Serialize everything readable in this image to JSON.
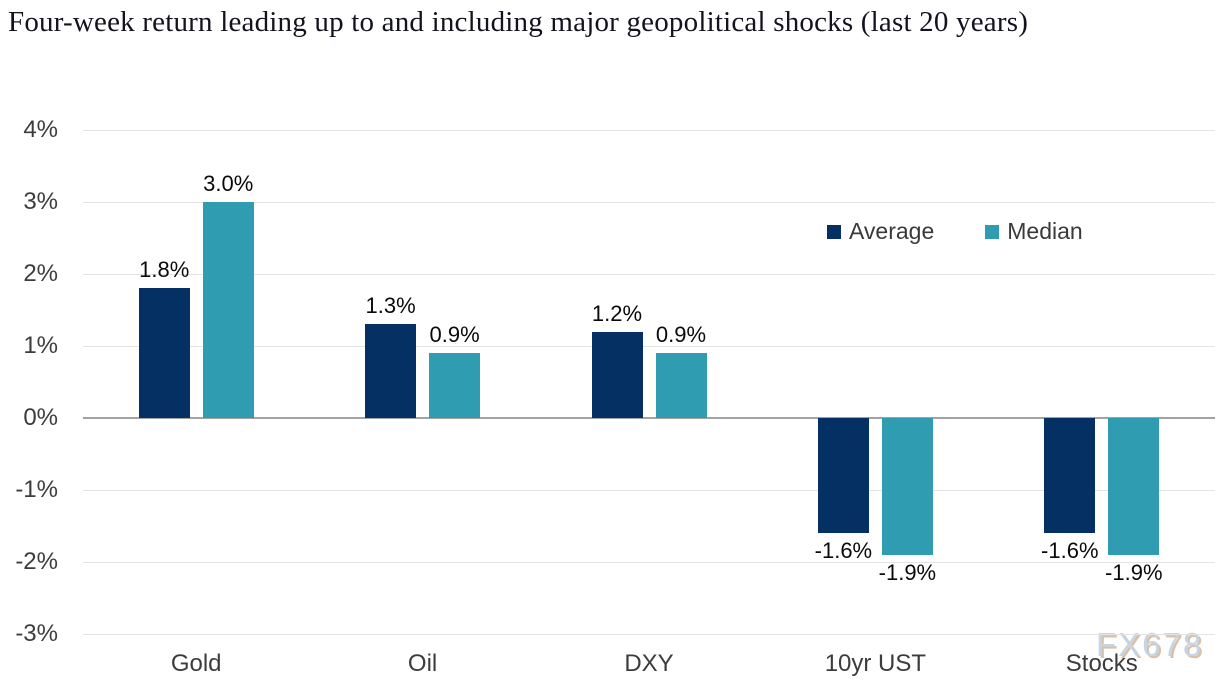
{
  "title": "Four-week return leading up to and including major geopolitical shocks (last 20 years)",
  "watermark": "FX678",
  "legend": {
    "items": [
      "Average",
      "Median"
    ]
  },
  "chart_data": {
    "type": "bar",
    "title": "Four-week return leading up to and including major geopolitical shocks (last 20 years)",
    "categories": [
      "Gold",
      "Oil",
      "DXY",
      "10yr UST",
      "Stocks"
    ],
    "series": [
      {
        "name": "Average",
        "color": "#043063",
        "values": [
          1.8,
          1.3,
          1.2,
          -1.6,
          -1.6
        ],
        "labels": [
          "1.8%",
          "1.3%",
          "1.2%",
          "-1.6%",
          "-1.6%"
        ]
      },
      {
        "name": "Median",
        "color": "#2f9cb1",
        "values": [
          3.0,
          0.9,
          0.9,
          -1.9,
          -1.9
        ],
        "labels": [
          "3.0%",
          "0.9%",
          "0.9%",
          "-1.9%",
          "-1.9%"
        ]
      }
    ],
    "xlabel": "",
    "ylabel": "",
    "ylim": [
      -3,
      4
    ],
    "yticks": [
      {
        "value": 4,
        "label": "4%"
      },
      {
        "value": 3,
        "label": "3%"
      },
      {
        "value": 2,
        "label": "2%"
      },
      {
        "value": 1,
        "label": "1%"
      },
      {
        "value": 0,
        "label": "0%"
      },
      {
        "value": -1,
        "label": "-1%"
      },
      {
        "value": -2,
        "label": "-2%"
      },
      {
        "value": -3,
        "label": "-3%"
      }
    ],
    "grid": true,
    "legend_position": "upper-right-inside"
  },
  "colors": {
    "average_bar": "#043063",
    "median_bar": "#2f9cb1",
    "gridline": "#e3e3e3",
    "zero_line": "#a2a2a2",
    "title_text": "#13131f",
    "axis_text": "#3c3c3c",
    "value_text": "#0a0a0a",
    "watermark_text": "#c7d5e2",
    "watermark_shadow": "#d9c0a6"
  }
}
